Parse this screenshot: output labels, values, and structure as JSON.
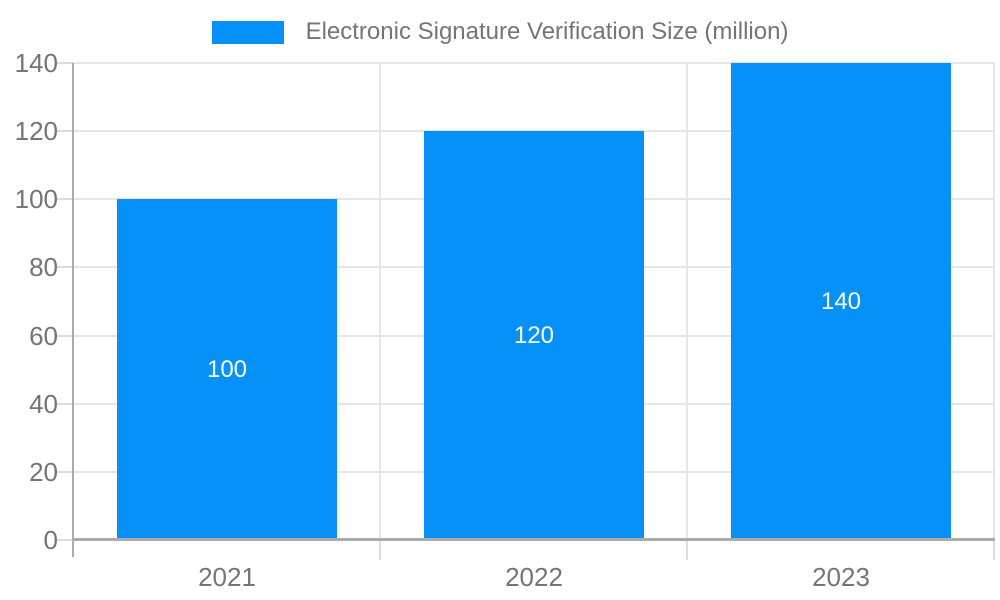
{
  "chart_data": {
    "type": "bar",
    "title": "Electronic Signature Verification Size (million)",
    "categories": [
      "2021",
      "2022",
      "2023"
    ],
    "values": [
      100,
      120,
      140
    ],
    "data_labels": [
      "100",
      "120",
      "140"
    ],
    "yticks": [
      0,
      20,
      40,
      60,
      80,
      100,
      120,
      140
    ],
    "ylim": [
      0,
      140
    ],
    "xlabel": "",
    "ylabel": "",
    "grid": true,
    "legend_position": "top",
    "colors": {
      "bar": "#0591f8",
      "data_label": "#ffffff",
      "axis_label": "#757575",
      "legend_text": "#757575",
      "gridline": "#e6e6e6",
      "tick": "#dcdcdc",
      "axis_line": "#ababab",
      "background": "#ffffff"
    }
  }
}
